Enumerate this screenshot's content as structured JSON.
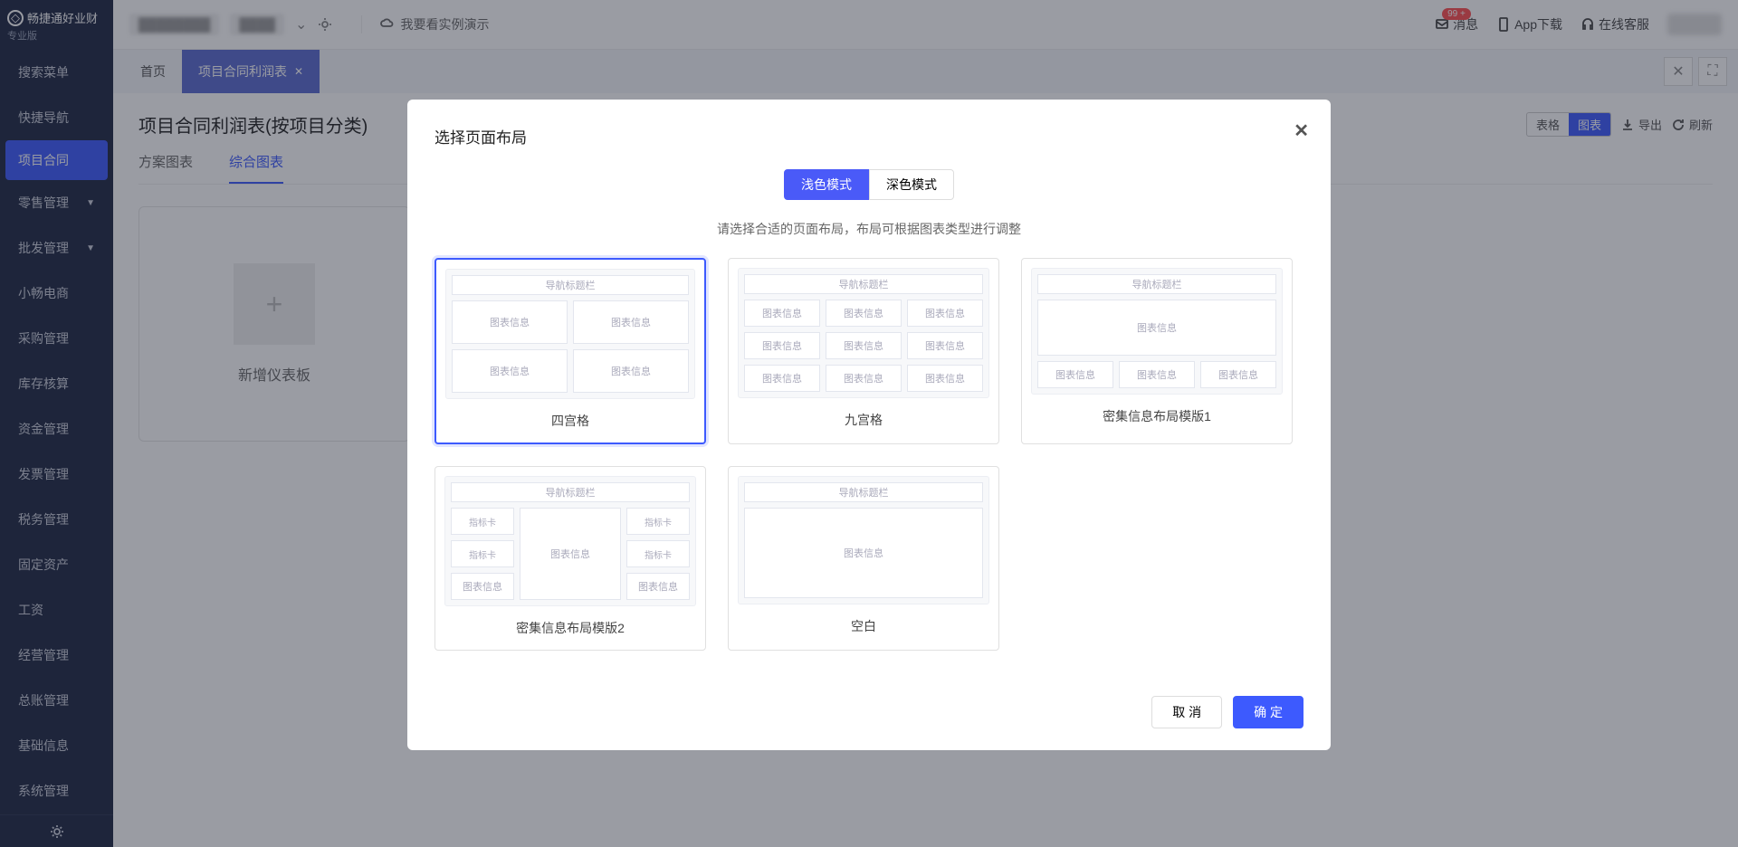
{
  "brand": {
    "name": "畅捷通好业财",
    "edition": "专业版"
  },
  "topbar": {
    "demo": "我要看实例演示",
    "msg": "消息",
    "msg_badge": "99 +",
    "app": "App下载",
    "service": "在线客服"
  },
  "sidebar": {
    "items": [
      {
        "label": "搜索菜单"
      },
      {
        "label": "快捷导航"
      },
      {
        "label": "项目合同",
        "active": true
      },
      {
        "label": "零售管理",
        "expand": true
      },
      {
        "label": "批发管理",
        "expand": true
      },
      {
        "label": "小畅电商"
      },
      {
        "label": "采购管理"
      },
      {
        "label": "库存核算"
      },
      {
        "label": "资金管理"
      },
      {
        "label": "发票管理"
      },
      {
        "label": "税务管理"
      },
      {
        "label": "固定资产"
      },
      {
        "label": "工资"
      },
      {
        "label": "经营管理"
      },
      {
        "label": "总账管理"
      },
      {
        "label": "基础信息"
      },
      {
        "label": "系统管理"
      }
    ]
  },
  "tabs": {
    "home": "首页",
    "current": "项目合同利润表"
  },
  "page": {
    "title": "项目合同利润表(按项目分类)",
    "seg_table": "表格",
    "seg_chart": "图表",
    "export": "导出",
    "refresh": "刷新",
    "inner_tab1": "方案图表",
    "inner_tab2": "综合图表",
    "add_dashboard": "新增仪表板"
  },
  "modal": {
    "title": "选择页面布局",
    "mode_light": "浅色模式",
    "mode_dark": "深色模式",
    "hint": "请选择合适的页面布局，布局可根据图表类型进行调整",
    "nav_label": "导航标题栏",
    "cell_chart": "图表信息",
    "cell_card": "指标卡",
    "layouts": [
      {
        "name": "四宫格",
        "type": "g4",
        "selected": true
      },
      {
        "name": "九宫格",
        "type": "g9"
      },
      {
        "name": "密集信息布局模版1",
        "type": "gdense1"
      },
      {
        "name": "密集信息布局模版2",
        "type": "gdense2"
      },
      {
        "name": "空白",
        "type": "gblank"
      }
    ],
    "cancel": "取 消",
    "ok": "确 定"
  }
}
